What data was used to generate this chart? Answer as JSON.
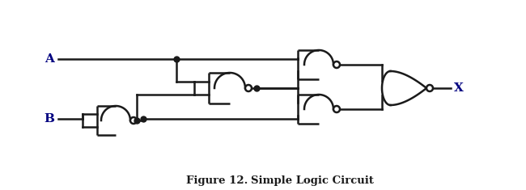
{
  "title_left": "Figure 12.",
  "title_right": "Simple Logic Circuit",
  "line_color": "#1a1a1a",
  "lw": 1.8,
  "bg_color": "#ffffff",
  "label_A": "A",
  "label_B": "B",
  "label_X": "X",
  "fig_width": 6.5,
  "fig_height": 2.35,
  "dpi": 100
}
